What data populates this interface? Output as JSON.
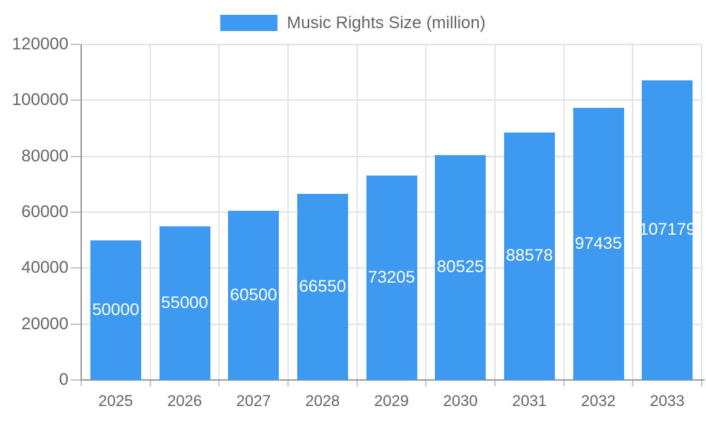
{
  "chart_data": {
    "type": "bar",
    "title": "",
    "legend": {
      "position": "top",
      "label": "Music Rights Size (million)"
    },
    "categories": [
      "2025",
      "2026",
      "2027",
      "2028",
      "2029",
      "2030",
      "2031",
      "2032",
      "2033"
    ],
    "values": [
      50000,
      55000,
      60500,
      66550,
      73205,
      80525,
      88578,
      97435,
      107179
    ],
    "value_labels": "inside-middle",
    "xlabel": "",
    "ylabel": "",
    "ylim": [
      0,
      120000
    ],
    "yticks": [
      0,
      20000,
      40000,
      60000,
      80000,
      100000,
      120000
    ],
    "grid": "both",
    "colors": {
      "bar": "#3d9af0",
      "value_label_text": "#ffffff",
      "gridline": "#e4e4e4",
      "axis_line": "#999999",
      "tick": "#c6c6c6",
      "axis_text": "#666666",
      "legend_text": "#666666"
    }
  }
}
